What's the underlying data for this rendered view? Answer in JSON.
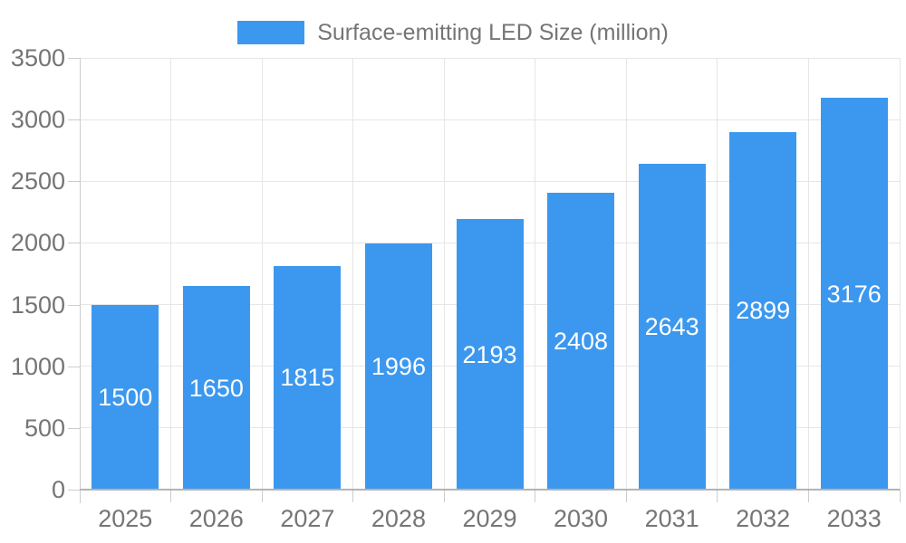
{
  "chart_data": {
    "type": "bar",
    "legend": {
      "label": "Surface-emitting LED Size (million)",
      "position": "top"
    },
    "categories": [
      "2025",
      "2026",
      "2027",
      "2028",
      "2029",
      "2030",
      "2031",
      "2032",
      "2033"
    ],
    "values": [
      1500,
      1650,
      1815,
      1996,
      2193,
      2408,
      2643,
      2899,
      3176
    ],
    "title": "",
    "xlabel": "",
    "ylabel": "",
    "ylim": [
      0,
      3500
    ],
    "ytick_step": 500,
    "ytick_labels": [
      "0",
      "500",
      "1000",
      "1500",
      "2000",
      "2500",
      "3000",
      "3500"
    ],
    "grid": true,
    "legend_position": "top-center",
    "style": {
      "bar_color": "#3c98ee",
      "value_label_color": "#ffffff",
      "text_color": "#757575",
      "grid_color": "#e6e6e6",
      "axis_color": "#b3b3b3",
      "yaxis_line_color": "#cccccc",
      "tick_color": "#cccccc",
      "background_color": "#ffffff"
    }
  }
}
